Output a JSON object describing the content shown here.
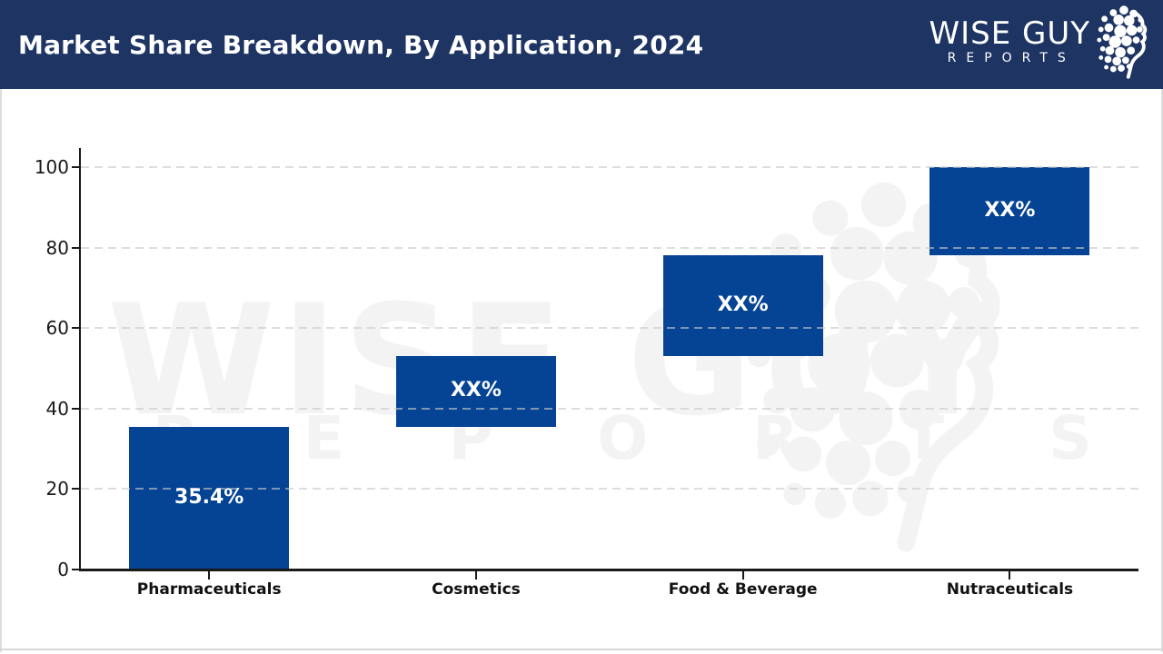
{
  "header": {
    "title": "Market Share Breakdown, By Application, 2024",
    "brand": {
      "line1": "WISE GUY",
      "line2": "REPORTS"
    }
  },
  "watermark": {
    "line1": "WISE GUY",
    "line2": "R E P O R T S"
  },
  "colors": {
    "header_bg": "#1e3563",
    "bar": "#054394",
    "axis": "#1a1a1a",
    "grid_dash": "#cccccc",
    "bar_label_text": "#ffffff",
    "tick_text": "#1a1a1a"
  },
  "chart_data": {
    "type": "bar",
    "subtype": "waterfall",
    "title": "Market Share Breakdown, By Application, 2024",
    "xlabel": "",
    "ylabel": "",
    "categories": [
      "Pharmaceuticals",
      "Cosmetics",
      "Food & Beverage",
      "Nutraceuticals"
    ],
    "bars": [
      {
        "category": "Pharmaceuticals",
        "start": 0,
        "end": 35.4,
        "value_label": "35.4%"
      },
      {
        "category": "Cosmetics",
        "start": 35.4,
        "end": 53,
        "value_label": "XX%"
      },
      {
        "category": "Food & Beverage",
        "start": 53,
        "end": 78,
        "value_label": "XX%"
      },
      {
        "category": "Nutraceuticals",
        "start": 78,
        "end": 100,
        "value_label": "XX%"
      }
    ],
    "yticks": [
      0,
      20,
      40,
      60,
      80,
      100
    ],
    "ylim": [
      0,
      105
    ],
    "grid": "horizontal-dashed",
    "legend_position": "none"
  }
}
